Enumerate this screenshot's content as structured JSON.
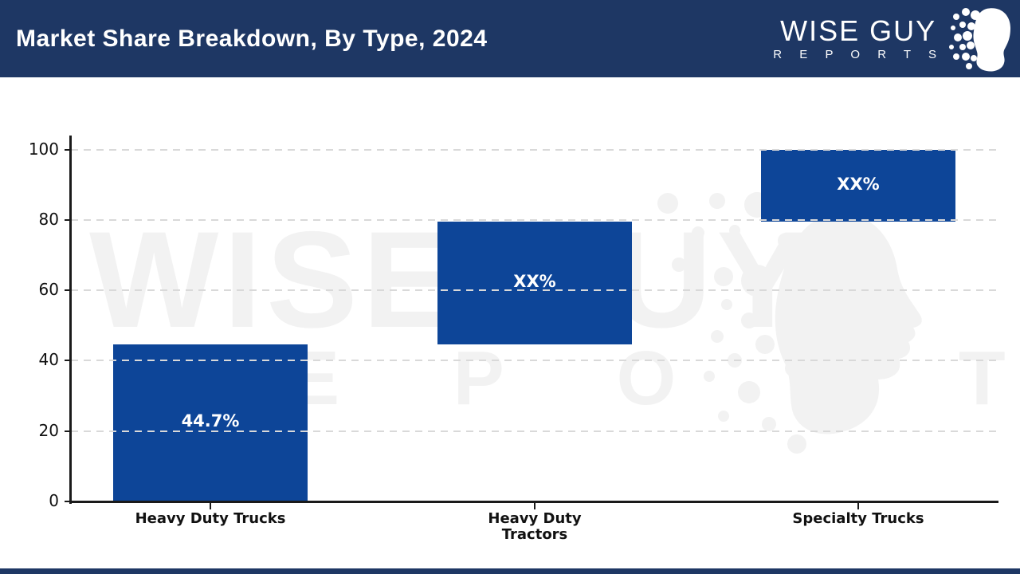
{
  "header": {
    "title": "Market Share Breakdown, By Type, 2024",
    "bg_color": "#1e3764",
    "logo": {
      "line1": "WISE GUY",
      "line2": "R E P O R T S"
    }
  },
  "watermark": {
    "line1": "WISE GUY",
    "line2": "REPORTS"
  },
  "footer": {
    "bg_color": "#1e3764"
  },
  "chart_data": {
    "type": "bar",
    "subtype": "waterfall",
    "title": "Market Share Breakdown, By Type, 2024",
    "categories": [
      "Heavy Duty Trucks",
      "Heavy Duty\nTractors",
      "Specialty Trucks"
    ],
    "segments": [
      {
        "category": "Heavy Duty Trucks",
        "start": 0,
        "end": 44.7,
        "label": "44.7%"
      },
      {
        "category": "Heavy Duty\nTractors",
        "start": 44.7,
        "end": 79.6,
        "label": "XX%"
      },
      {
        "category": "Specialty Trucks",
        "start": 79.6,
        "end": 100,
        "label": "XX%"
      }
    ],
    "ylim": [
      0,
      104
    ],
    "yticks": [
      0,
      20,
      40,
      60,
      80,
      100
    ],
    "grid": "horizontal-dashed",
    "legend": "none",
    "bar_color": "#0d4598",
    "value_label_color": "#ffffff",
    "axis_color": "#1a1a1a",
    "grid_color": "#d9d9d9",
    "watermark_color": "#f2f2f2"
  }
}
